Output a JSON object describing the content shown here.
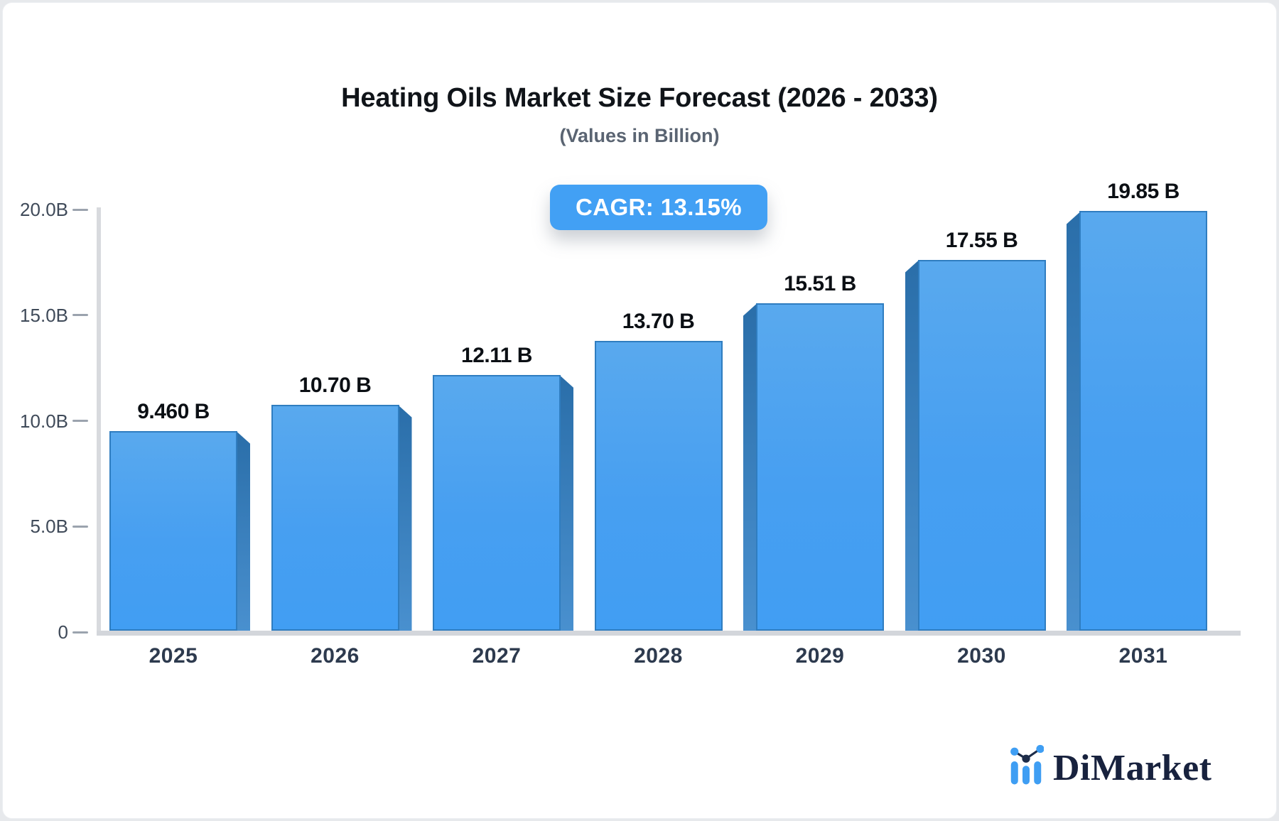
{
  "header": {
    "title": "Heating Oils Market Size Forecast (2026 - 2033)",
    "subtitle": "(Values in Billion)"
  },
  "chart_data": {
    "type": "bar",
    "title": "Heating Oils Market Size Forecast (2026 - 2033)",
    "subtitle": "(Values in Billion)",
    "cagr_badge": "CAGR: 13.15%",
    "categories": [
      "2025",
      "2026",
      "2027",
      "2028",
      "2029",
      "2030",
      "2031"
    ],
    "values": [
      9.46,
      10.7,
      12.11,
      13.7,
      15.51,
      17.55,
      19.85
    ],
    "value_labels": [
      "9.460 B",
      "10.70 B",
      "12.11 B",
      "13.70 B",
      "15.51 B",
      "17.55 B",
      "19.85 B"
    ],
    "ylim": [
      0,
      20
    ],
    "y_ticks": [
      {
        "label": "20.0B",
        "value": 20
      },
      {
        "label": "15.0B",
        "value": 15
      },
      {
        "label": "10.0B",
        "value": 10
      },
      {
        "label": "5.0B",
        "value": 5
      },
      {
        "label": "0",
        "value": 0
      }
    ],
    "grid": false,
    "legend": false,
    "bar_3d_perspective": "side faces point away from center; bars left of center show right side, bars right of center show left side, center bar flat",
    "colors": {
      "bar_face_top": "#59a9ee",
      "bar_face_bottom": "#419ef3",
      "bar_side_top": "#2a6ea9",
      "bar_side_bottom": "#4990cf",
      "badge_bg": "#42a0f4",
      "axis": "#d5d8dc",
      "value_text": "#0b0f14",
      "tick_text": "#3f4a59"
    }
  },
  "footer": {
    "brand": "DiMarket",
    "brand_icon": "mini-bar-chart-icon"
  }
}
